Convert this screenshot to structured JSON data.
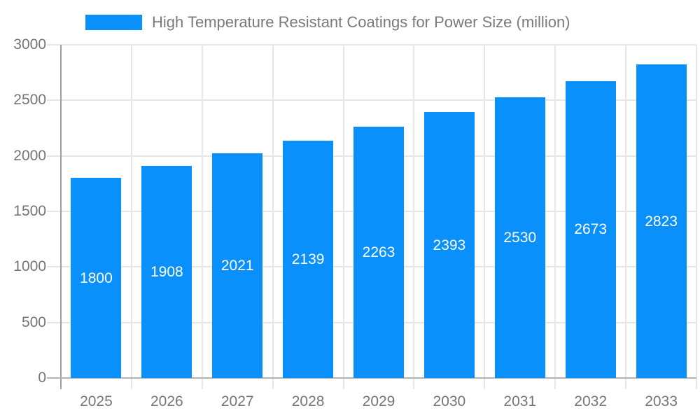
{
  "legend": {
    "label": "High Temperature Resistant Coatings for Power Size (million)"
  },
  "chart_data": {
    "type": "bar",
    "title": "High Temperature Resistant Coatings for Power Size (million)",
    "categories": [
      "2025",
      "2026",
      "2027",
      "2028",
      "2029",
      "2030",
      "2031",
      "2032",
      "2033"
    ],
    "values": [
      1800,
      1908,
      2021,
      2139,
      2263,
      2393,
      2530,
      2673,
      2823
    ],
    "xlabel": "",
    "ylabel": "",
    "ylim": [
      0,
      3000
    ],
    "yticks": [
      0,
      500,
      1000,
      1500,
      2000,
      2500,
      3000
    ],
    "grid": true,
    "legend_position": "top-left",
    "value_label_position": "inside-center",
    "colors": {
      "bar": "#0990FB",
      "value_label": "#FFFFFF",
      "axis_text": "#757575",
      "legend_text": "#7A7A7A",
      "grid": "#E6E6E6",
      "axis_border": "#9E9E9E",
      "baseline": "#B3B3B3",
      "background": "#FFFFFF"
    }
  }
}
